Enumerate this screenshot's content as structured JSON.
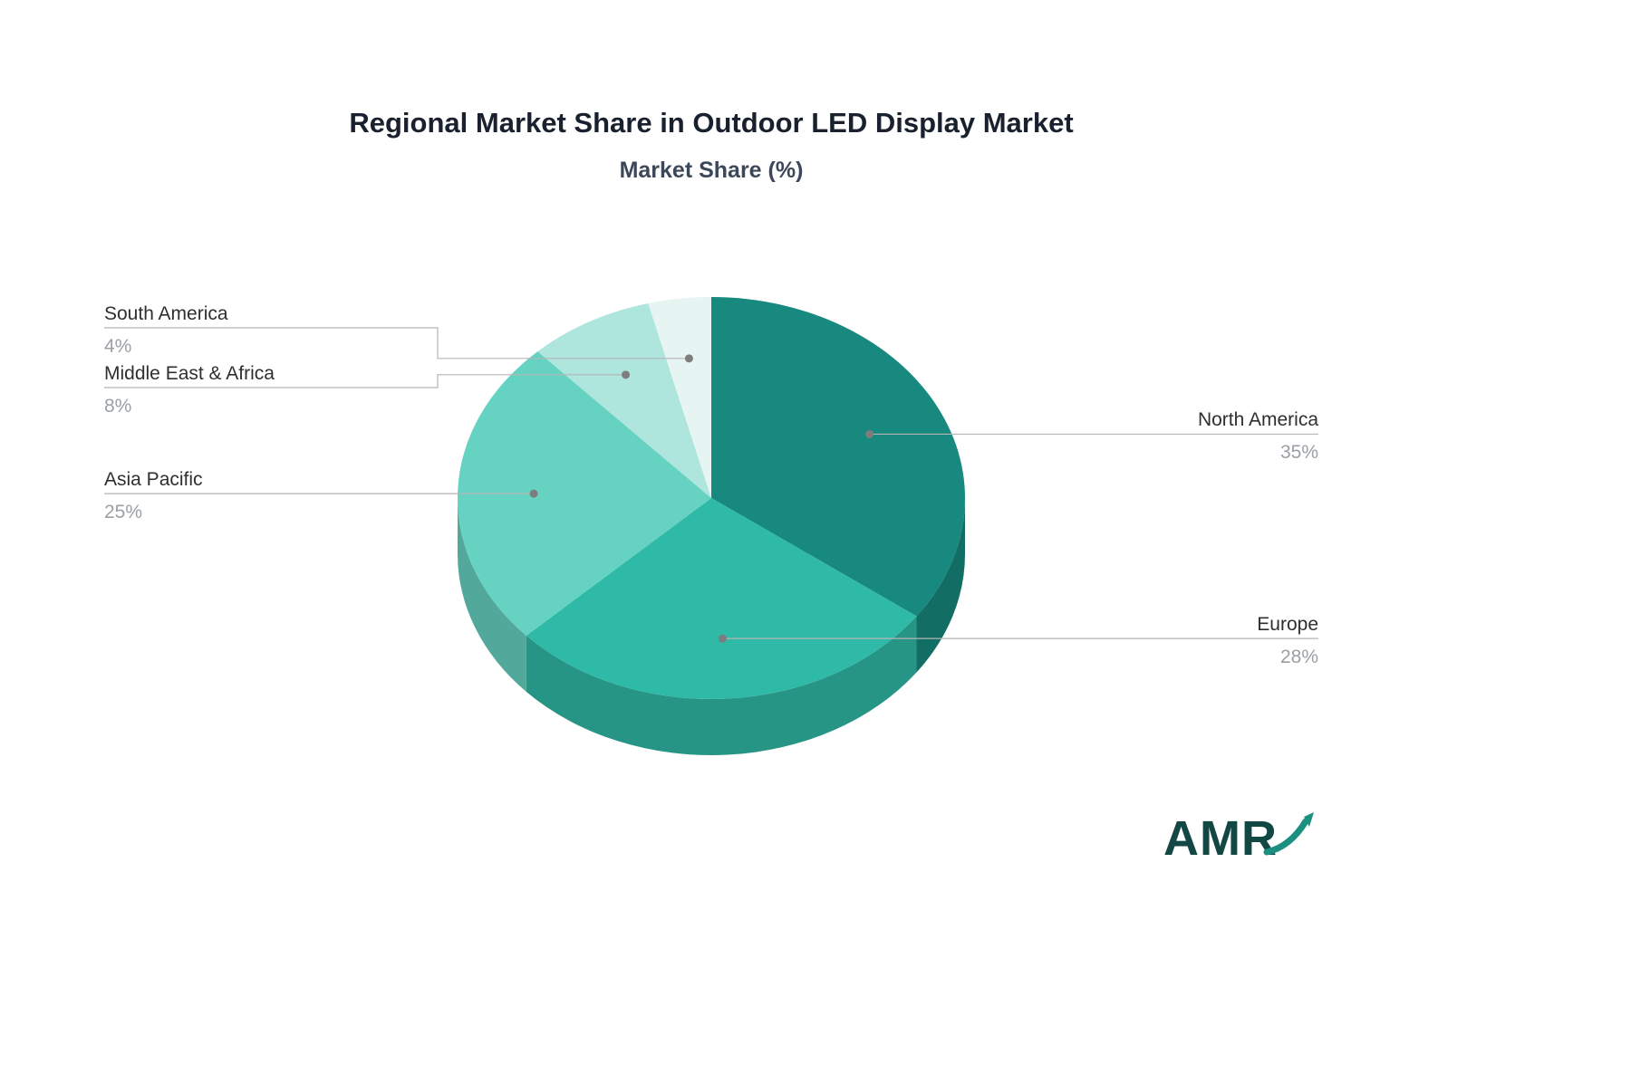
{
  "chart_data": {
    "type": "pie",
    "title": "Regional Market Share in Outdoor LED Display Market",
    "subtitle": "Market Share (%)",
    "unit": "%",
    "effect_3d": true,
    "start_angle": "top",
    "direction": "clockwise",
    "legend": "callout-labels",
    "slices": [
      {
        "label": "North America",
        "value": 35,
        "display": "35%",
        "color": "#17897e"
      },
      {
        "label": "Europe",
        "value": 28,
        "display": "28%",
        "color": "#2fbaa8"
      },
      {
        "label": "Asia Pacific",
        "value": 25,
        "display": "25%",
        "color": "#66d2c2"
      },
      {
        "label": "Middle East & Africa",
        "value": 8,
        "display": "8%",
        "color": "#aee5dd"
      },
      {
        "label": "South America",
        "value": 4,
        "display": "4%",
        "color": "#e7f5f2"
      }
    ],
    "label_style": {
      "name_color": "#2f2f2f",
      "percent_color": "#9aa0a6",
      "leader_line_color": "#b5b5b5"
    }
  },
  "logo": {
    "text": "AMR",
    "arrow_icon": "up-right-arrow",
    "color": "#134744",
    "arrow_color": "#1b9080"
  }
}
